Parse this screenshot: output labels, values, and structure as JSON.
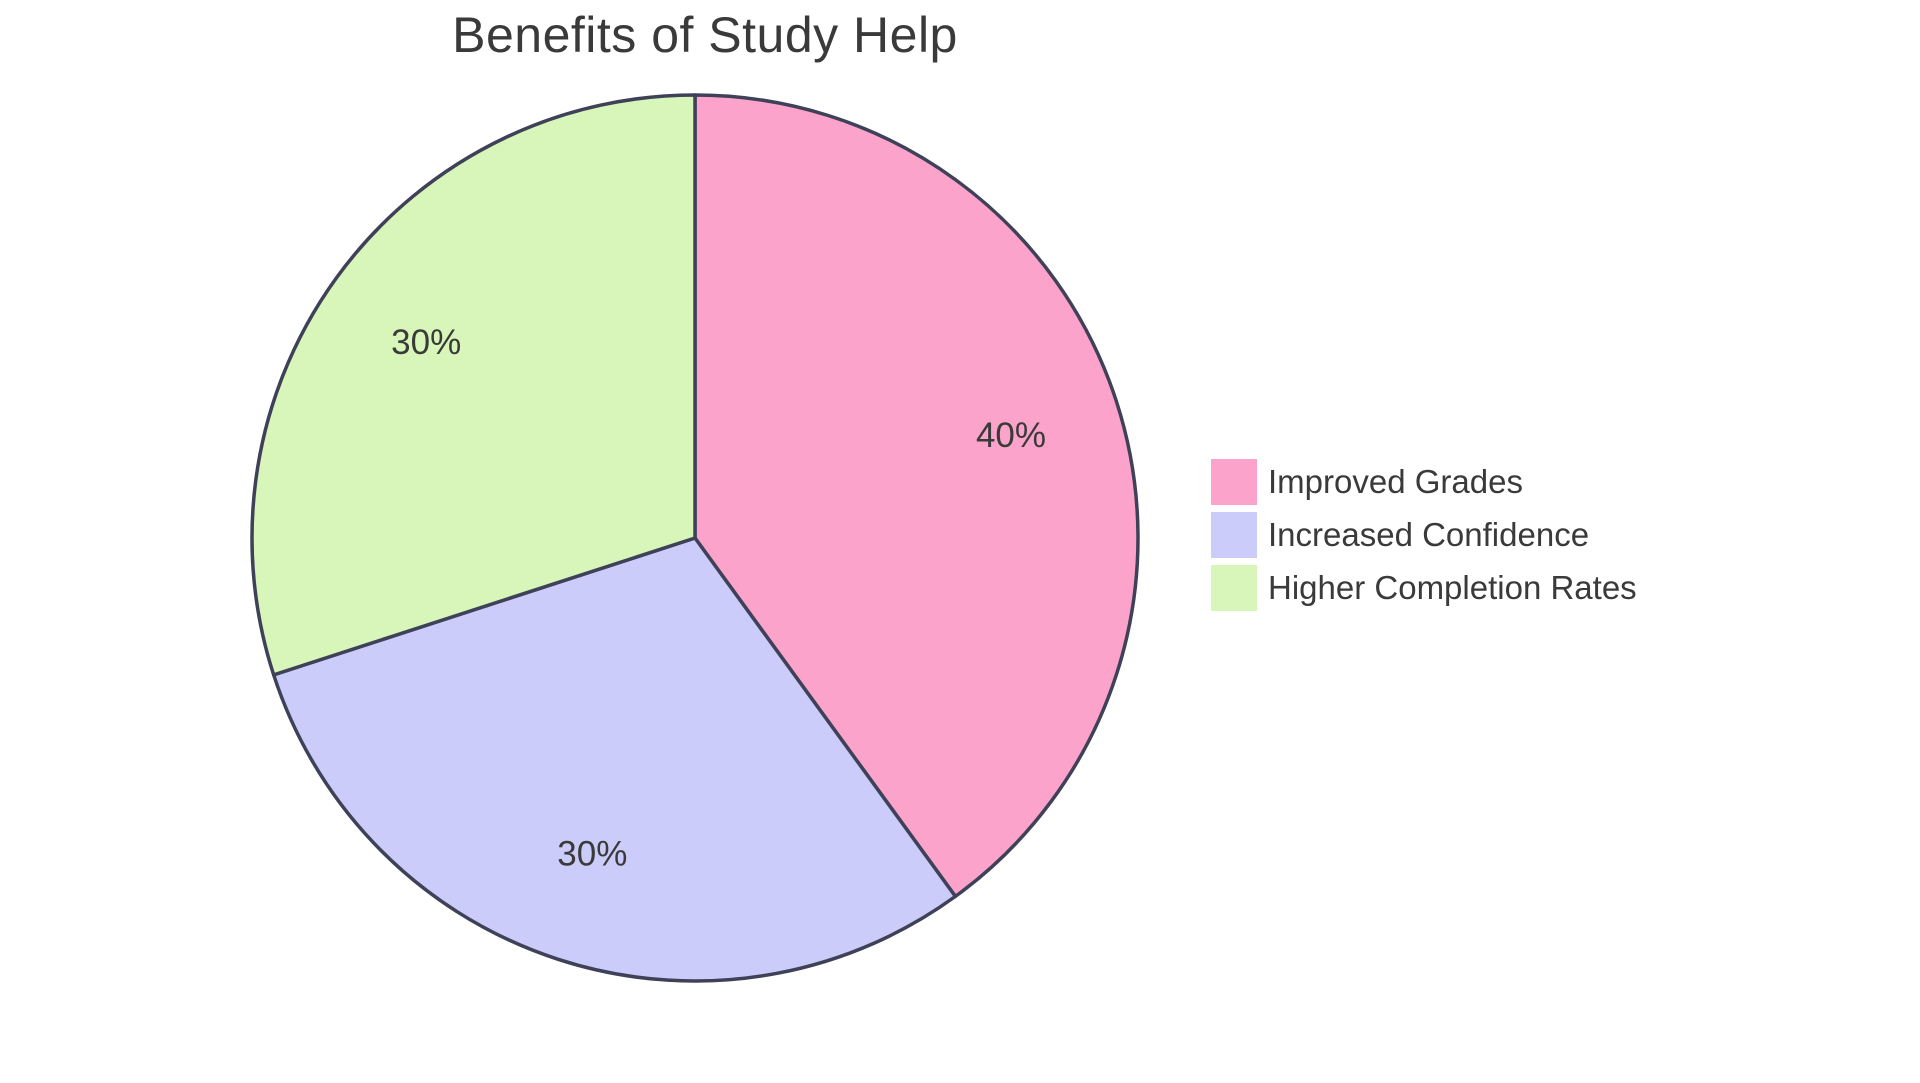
{
  "chart_data": {
    "type": "pie",
    "title": "Benefits of Study Help",
    "labels": [
      "Improved Grades",
      "Increased Confidence",
      "Higher Completion Rates"
    ],
    "values": [
      40,
      30,
      30
    ],
    "slice_text": [
      "40%",
      "30%",
      "30%"
    ],
    "colors": [
      "#FCA3CB",
      "#CBCCFA",
      "#D8F6B9"
    ],
    "stroke_color": "#3E4157",
    "text_color": "#3A3A3A",
    "background": "#FFFFFF",
    "start_angle": "12-oclock",
    "direction": "clockwise",
    "legend_position": "right",
    "label_radius_fraction": 0.75
  }
}
